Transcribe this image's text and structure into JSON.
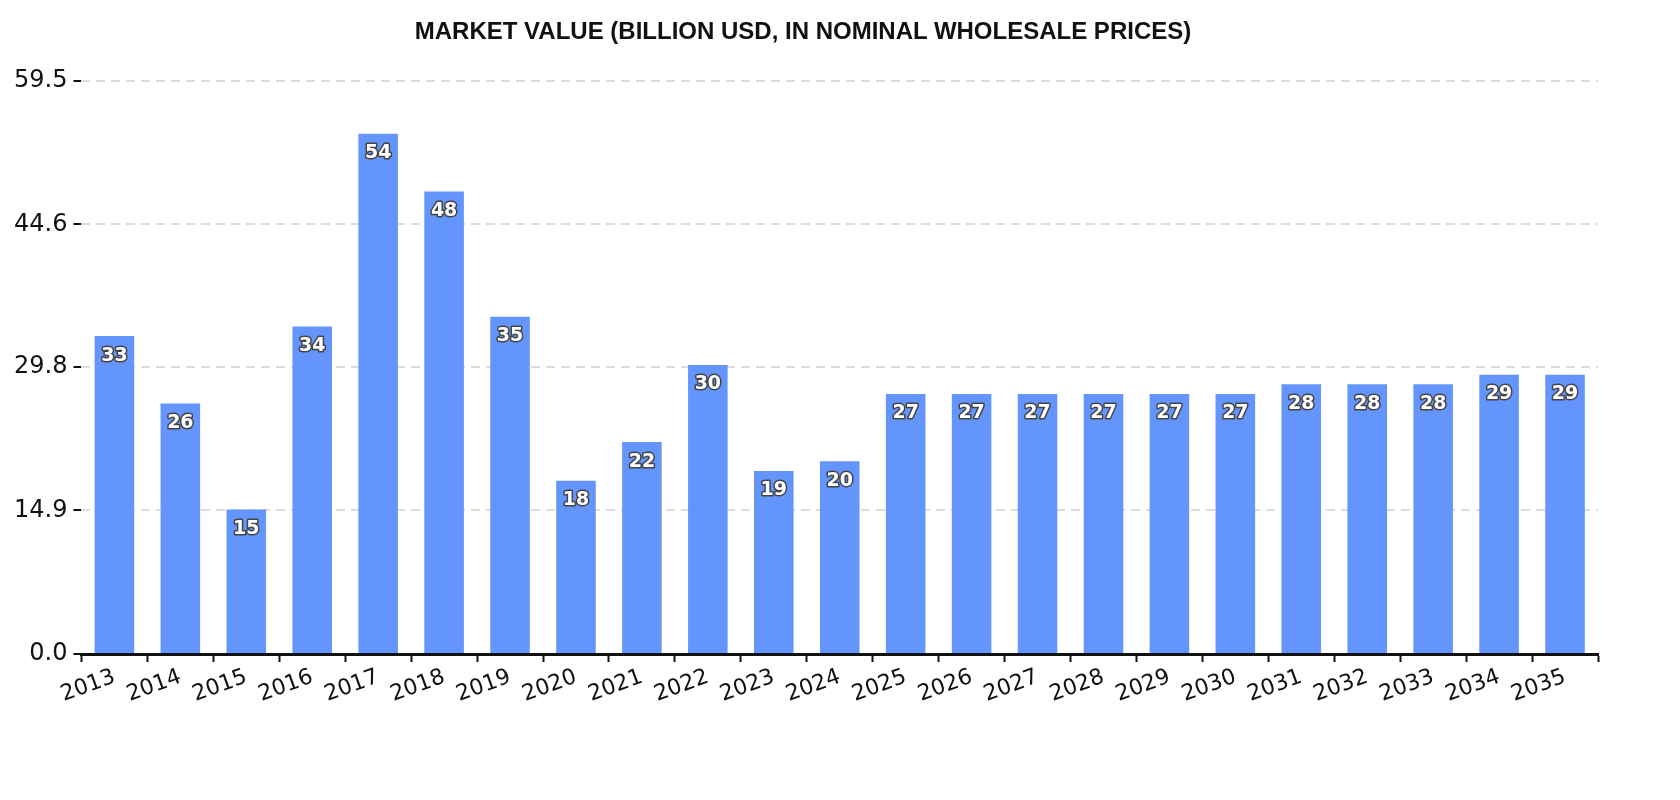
{
  "chart_data": {
    "type": "bar",
    "title": "MARKET VALUE (BILLION USD, IN NOMINAL WHOLESALE PRICES)",
    "categories": [
      "2013",
      "2014",
      "2015",
      "2016",
      "2017",
      "2018",
      "2019",
      "2020",
      "2021",
      "2022",
      "2023",
      "2024",
      "2025",
      "2026",
      "2027",
      "2028",
      "2029",
      "2030",
      "2031",
      "2032",
      "2033",
      "2034",
      "2035"
    ],
    "values": [
      33,
      26,
      15,
      34,
      54,
      48,
      35,
      18,
      22,
      30,
      19,
      20,
      27,
      27,
      27,
      27,
      27,
      27,
      28,
      28,
      28,
      29,
      29
    ],
    "color": "#6495fc",
    "ylim": [
      0,
      59.5
    ],
    "yticks": [
      {
        "value": 0,
        "label": "0.0"
      },
      14.9,
      29.8,
      44.6,
      59.5
    ],
    "grid": "y",
    "data_labels": true
  }
}
